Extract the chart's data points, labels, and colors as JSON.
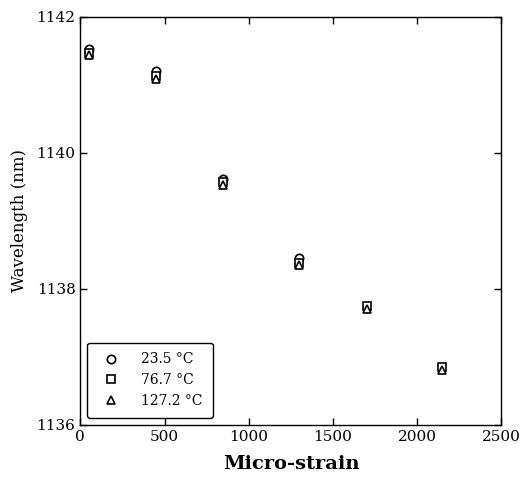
{
  "series": [
    {
      "label": "23.5 °C",
      "marker": "o",
      "x": [
        50,
        450,
        850,
        1300
      ],
      "y": [
        1141.52,
        1141.2,
        1139.62,
        1138.45
      ]
    },
    {
      "label": "76.7 °C",
      "marker": "s",
      "x": [
        50,
        450,
        850,
        1300,
        1700,
        2150
      ],
      "y": [
        1141.47,
        1141.13,
        1139.57,
        1138.38,
        1137.75,
        1136.85
      ]
    },
    {
      "label": "127.2 °C",
      "marker": "^",
      "x": [
        50,
        450,
        850,
        1300,
        1700,
        2150
      ],
      "y": [
        1141.43,
        1141.08,
        1139.52,
        1138.35,
        1137.7,
        1136.8
      ]
    }
  ],
  "xlabel": "Micro-strain",
  "ylabel": "Wavelength (nm)",
  "xlim": [
    0,
    2500
  ],
  "ylim": [
    1136,
    1142
  ],
  "yticks": [
    1136,
    1138,
    1140,
    1142
  ],
  "xticks": [
    0,
    500,
    1000,
    1500,
    2000,
    2500
  ],
  "marker_size": 6,
  "marker_facecolor": "white",
  "marker_edgecolor": "black",
  "background_color": "#ffffff",
  "legend_loc": "lower left",
  "xlabel_fontsize": 14,
  "ylabel_fontsize": 12,
  "tick_fontsize": 11,
  "legend_fontsize": 10
}
